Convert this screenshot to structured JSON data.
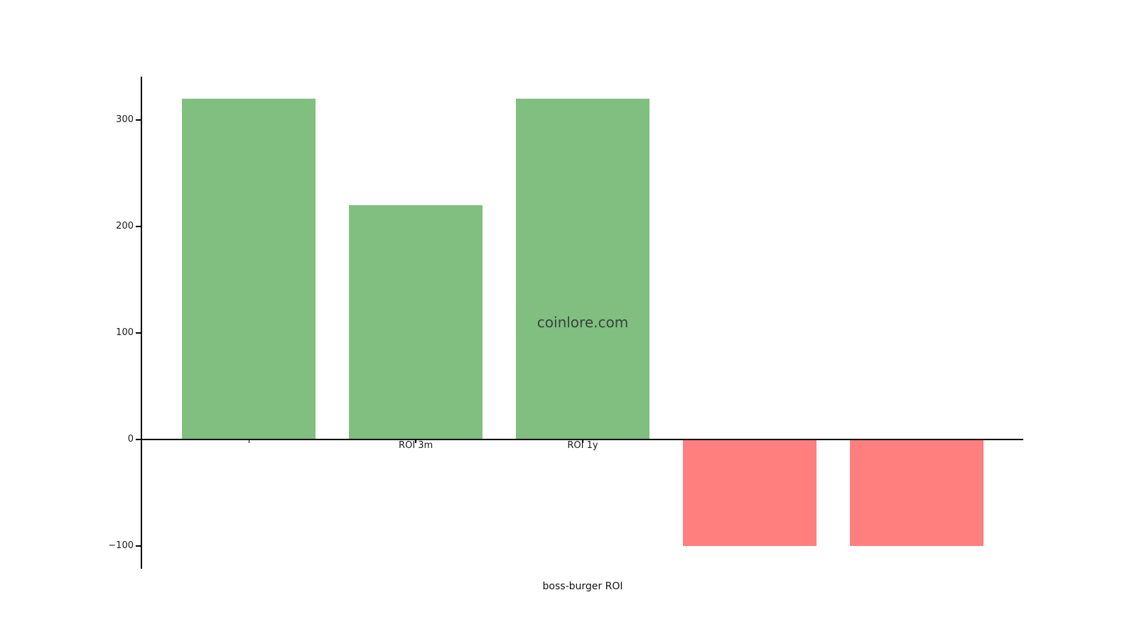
{
  "chart_data": {
    "type": "bar",
    "title": "boss-burger ROI",
    "watermark": "coinlore.com",
    "categories": [
      "",
      "ROI 3m",
      "ROI 1y",
      "",
      ""
    ],
    "values": [
      320,
      220,
      320,
      -100,
      -100
    ],
    "y_tick_values": [
      300,
      200,
      100,
      0,
      -100
    ],
    "y_tick_labels": [
      "300",
      "200",
      "100",
      "0",
      "−100"
    ],
    "ylim": [
      -121,
      341
    ],
    "xlabel": "boss-burger ROI",
    "ylabel": "",
    "grid": false,
    "legend": false,
    "positive_color": "#80bf80",
    "negative_color": "#ff7f7f",
    "axis_color": "#000000",
    "tick_text_color": "#1a1a1a",
    "watermark_color": "#2d2d2d",
    "background_color": "#ffffff"
  }
}
